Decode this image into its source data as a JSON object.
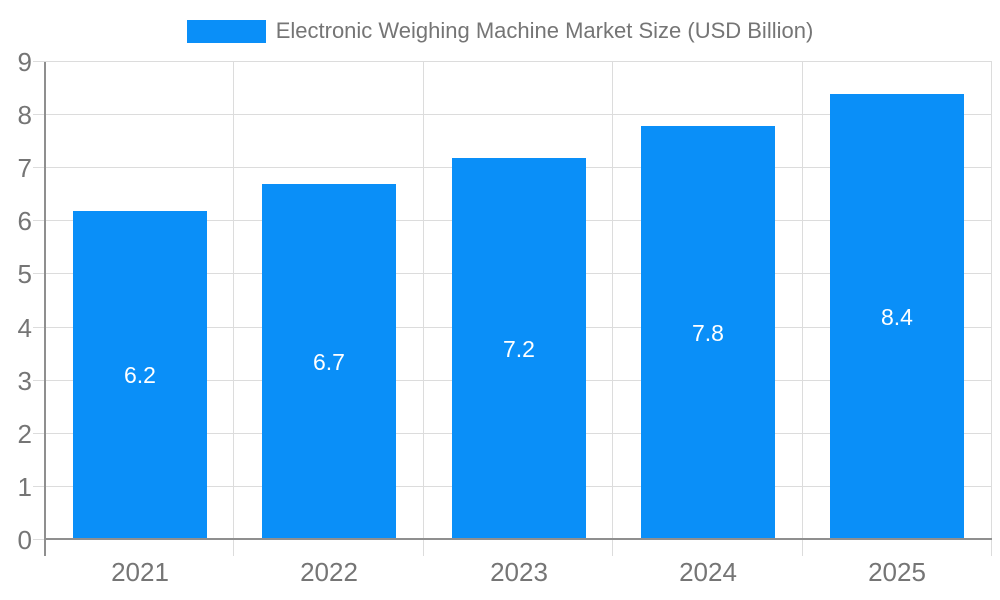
{
  "chart_data": {
    "type": "bar",
    "title": "Electronic Weighing Machine Market Size (USD Billion)",
    "categories": [
      "2021",
      "2022",
      "2023",
      "2024",
      "2025"
    ],
    "values": [
      6.2,
      6.7,
      7.2,
      7.8,
      8.4
    ],
    "bar_labels": [
      "6.2",
      "6.7",
      "7.2",
      "7.8",
      "8.4"
    ],
    "xlabel": "",
    "ylabel": "",
    "ylim": [
      0,
      9
    ],
    "yticks": [
      0,
      1,
      2,
      3,
      4,
      5,
      6,
      7,
      8,
      9
    ],
    "grid": true,
    "legend_position": "top",
    "colors": {
      "bar": "#0a8ff8",
      "grid": "#dcdcdc",
      "axis": "#8f8f8f",
      "axis_text": "#757575",
      "value_label": "#ffffff",
      "background": "#ffffff"
    }
  }
}
